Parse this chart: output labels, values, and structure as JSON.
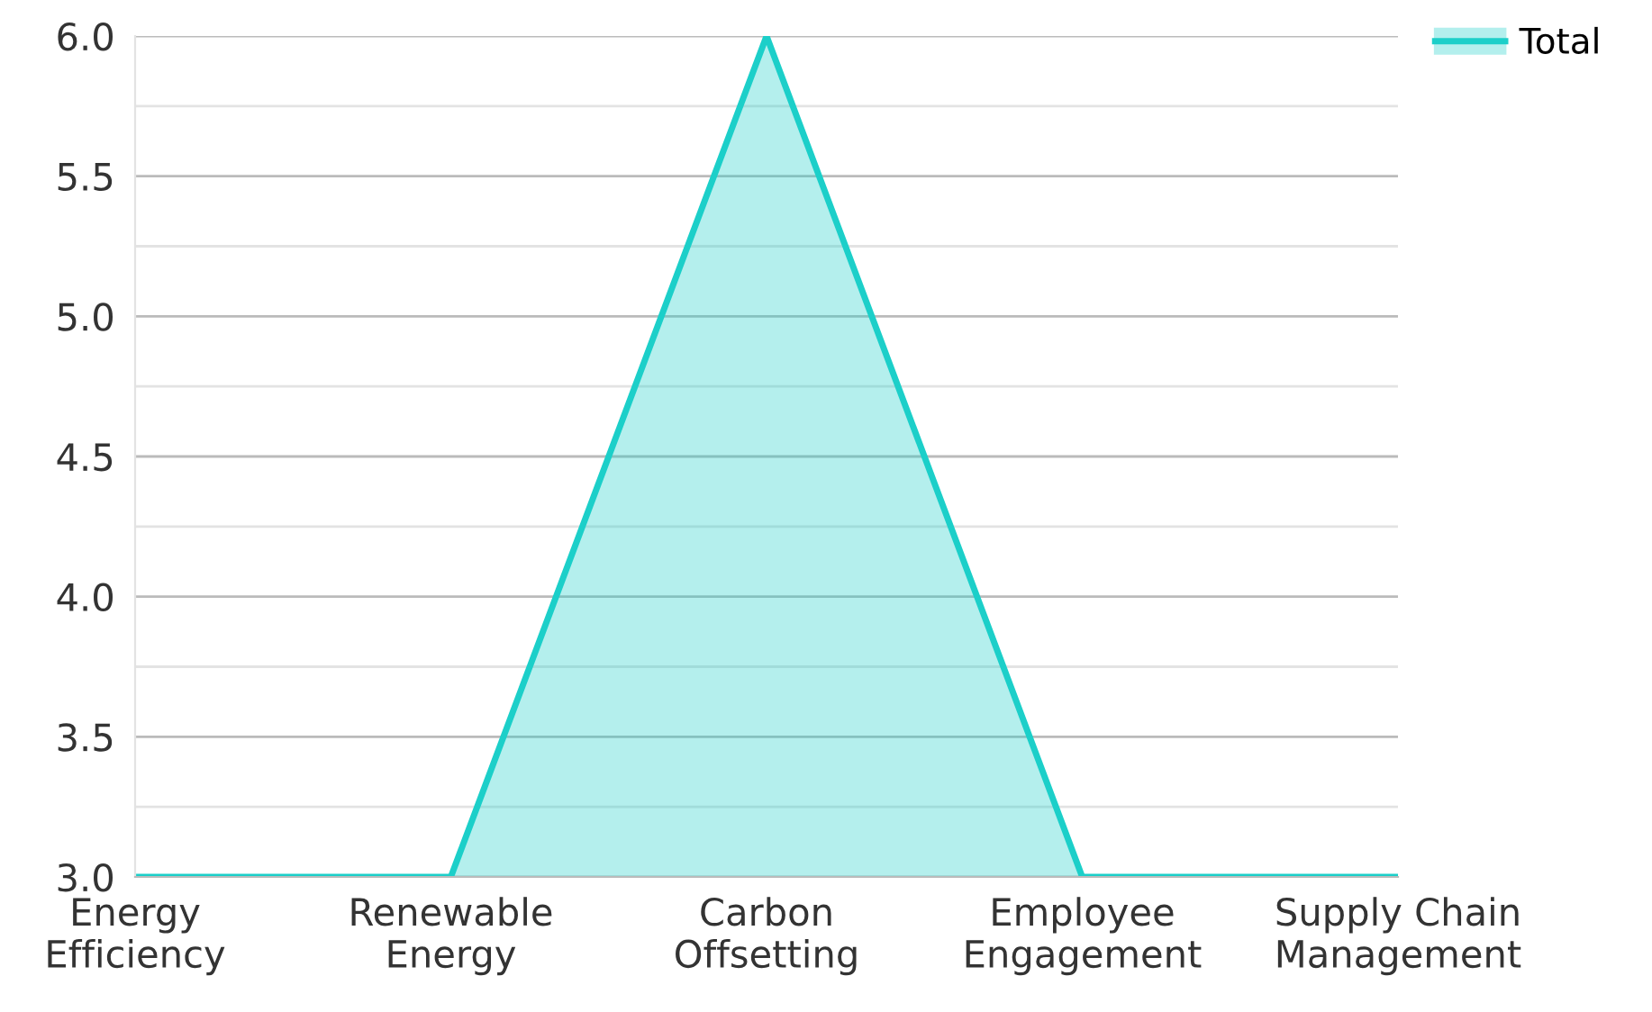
{
  "chart_data": {
    "type": "area",
    "categories": [
      "Energy\nEfficiency",
      "Renewable\nEnergy",
      "Carbon\nOffsetting",
      "Employee\nEngagement",
      "Supply Chain\nManagement"
    ],
    "series": [
      {
        "name": "Total",
        "color": "#1ccfc9",
        "values": [
          3,
          3,
          6,
          3,
          3
        ]
      }
    ],
    "ylim": [
      3,
      6
    ],
    "yticks": [
      {
        "value": 3,
        "label": "3.0"
      },
      {
        "value": 3.25,
        "label": null
      },
      {
        "value": 3.5,
        "label": "3.5"
      },
      {
        "value": 3.75,
        "label": null
      },
      {
        "value": 4,
        "label": "4.0"
      },
      {
        "value": 4.25,
        "label": null
      },
      {
        "value": 4.5,
        "label": "4.5"
      },
      {
        "value": 4.75,
        "label": null
      },
      {
        "value": 5,
        "label": "5.0"
      },
      {
        "value": 5.25,
        "label": null
      },
      {
        "value": 5.5,
        "label": "5.5"
      },
      {
        "value": 5.75,
        "label": null
      },
      {
        "value": 6,
        "label": "6.0"
      }
    ],
    "grid": "y",
    "legend": "top right",
    "marker": "none",
    "line_style": "solid"
  }
}
